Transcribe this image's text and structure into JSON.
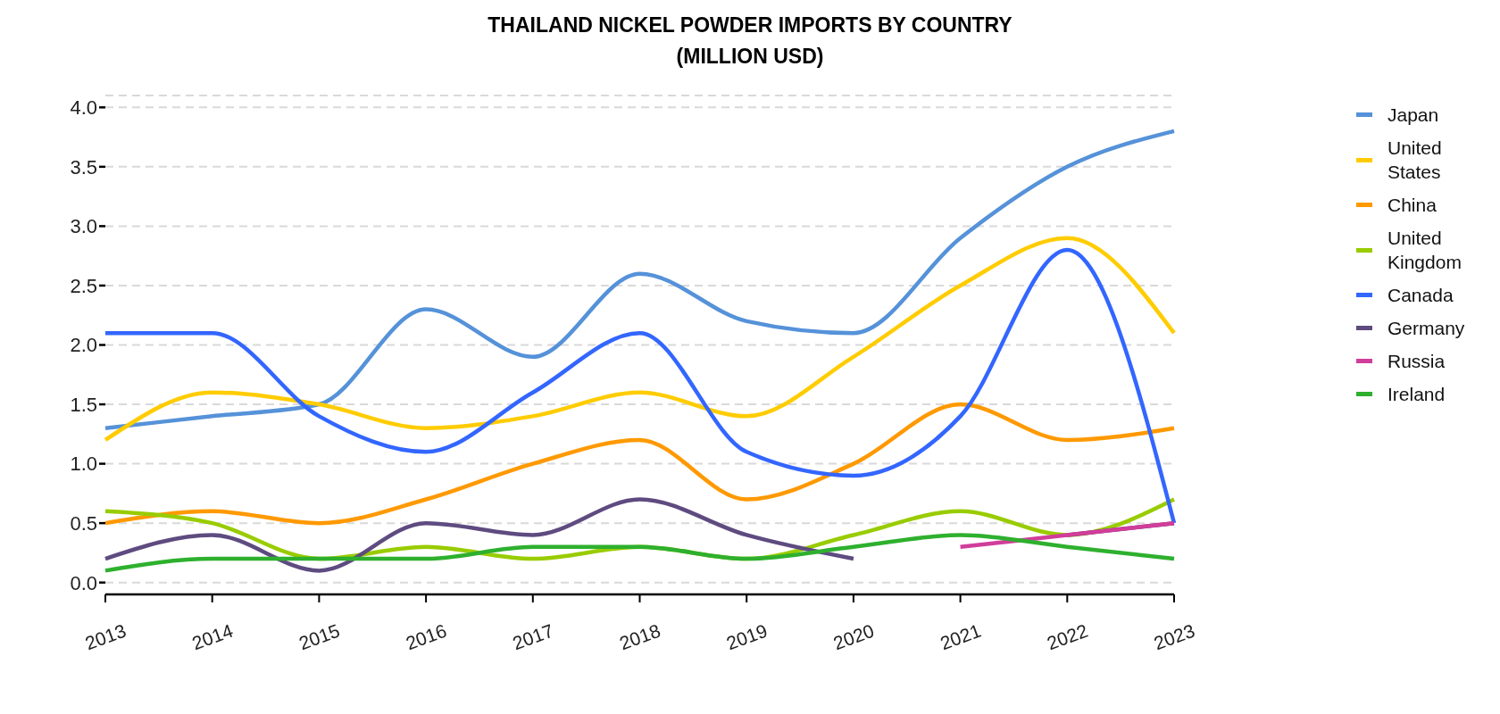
{
  "chart_data": {
    "type": "line",
    "title": "THAILAND NICKEL POWDER IMPORTS BY COUNTRY\n(MILLION USD)",
    "categories": [
      "2013",
      "2014",
      "2015",
      "2016",
      "2017",
      "2018",
      "2019",
      "2020",
      "2021",
      "2022",
      "2023"
    ],
    "series": [
      {
        "name": "Japan",
        "color": "#5592d9",
        "values": [
          1.3,
          1.4,
          1.5,
          2.3,
          1.9,
          2.6,
          2.2,
          2.1,
          2.9,
          3.5,
          3.8
        ]
      },
      {
        "name": "United States",
        "color": "#ffcc00",
        "values": [
          1.2,
          1.6,
          1.5,
          1.3,
          1.4,
          1.6,
          1.4,
          1.9,
          2.5,
          2.9,
          2.1
        ]
      },
      {
        "name": "China",
        "color": "#ff9900",
        "values": [
          0.5,
          0.6,
          0.5,
          0.7,
          1.0,
          1.2,
          0.7,
          1.0,
          1.5,
          1.2,
          1.3
        ]
      },
      {
        "name": "United Kingdom",
        "color": "#99cc00",
        "values": [
          0.6,
          0.5,
          0.2,
          0.3,
          0.2,
          0.3,
          0.2,
          0.4,
          0.6,
          0.4,
          0.7
        ]
      },
      {
        "name": "Canada",
        "color": "#3366ff",
        "values": [
          2.1,
          2.1,
          1.4,
          1.1,
          1.6,
          2.1,
          1.1,
          0.9,
          1.4,
          2.8,
          0.5
        ]
      },
      {
        "name": "Germany",
        "color": "#5e4b80",
        "values": [
          0.2,
          0.4,
          0.1,
          0.5,
          0.4,
          0.7,
          0.4,
          0.2,
          null,
          0.4,
          0.5
        ]
      },
      {
        "name": "Russia",
        "color": "#d13d9a",
        "values": [
          null,
          null,
          null,
          null,
          null,
          null,
          null,
          null,
          0.3,
          0.4,
          0.5
        ]
      },
      {
        "name": "Ireland",
        "color": "#2eb02e",
        "values": [
          0.1,
          0.2,
          0.2,
          0.2,
          0.3,
          0.3,
          0.2,
          0.3,
          0.4,
          0.3,
          0.2
        ]
      }
    ],
    "ylim": [
      -0.1,
      4.1
    ],
    "yticks": [
      {
        "value": 0,
        "label": "0.0"
      },
      {
        "value": 0.5,
        "label": "0.5"
      },
      {
        "value": 1,
        "label": "1.0"
      },
      {
        "value": 1.5,
        "label": "1.5"
      },
      {
        "value": 2,
        "label": "2.0"
      },
      {
        "value": 2.5,
        "label": "2.5"
      },
      {
        "value": 3,
        "label": "3.0"
      },
      {
        "value": 3.5,
        "label": "3.5"
      },
      {
        "value": 4,
        "label": "4.0"
      }
    ],
    "grid": "y",
    "legend": "top right"
  }
}
